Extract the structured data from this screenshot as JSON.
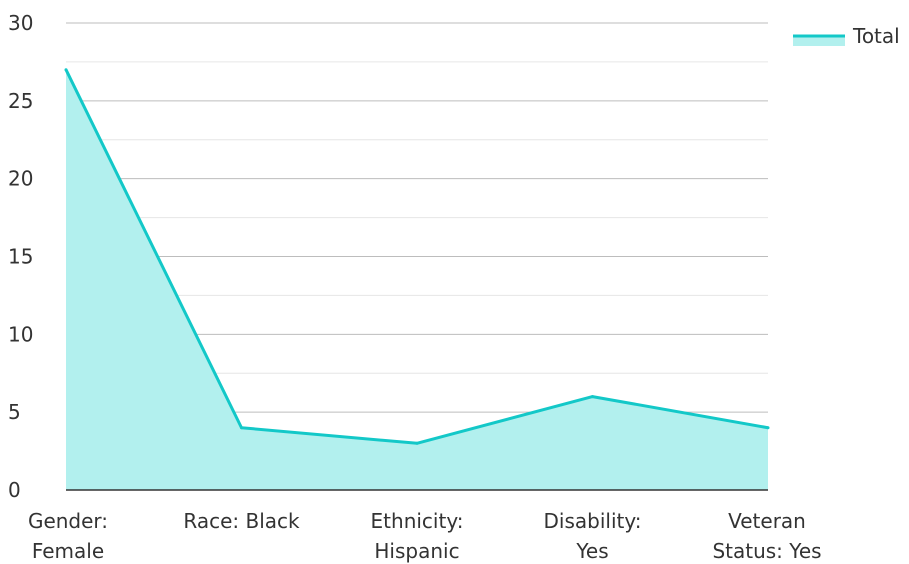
{
  "chart_data": {
    "type": "area",
    "categories": [
      [
        "Gender:",
        "Female"
      ],
      [
        "Race: Black"
      ],
      [
        "Ethnicity:",
        "Hispanic"
      ],
      [
        "Disability:",
        "Yes"
      ],
      [
        "Veteran",
        "Status: Yes"
      ]
    ],
    "series": [
      {
        "name": "Total",
        "values": [
          27,
          4,
          3,
          6,
          4
        ]
      }
    ],
    "y_ticks": [
      "0",
      "5",
      "10",
      "15",
      "20",
      "25",
      "30"
    ],
    "ylim": [
      0,
      30
    ],
    "title": "",
    "xlabel": "",
    "ylabel": "",
    "grid": true,
    "legend": "top-right",
    "colors": {
      "line": "#13c8c8",
      "fill": "#b2f0ee",
      "grid_major": "#bdbdbd",
      "grid_minor": "#e6e6e6",
      "axis": "#333333"
    }
  }
}
